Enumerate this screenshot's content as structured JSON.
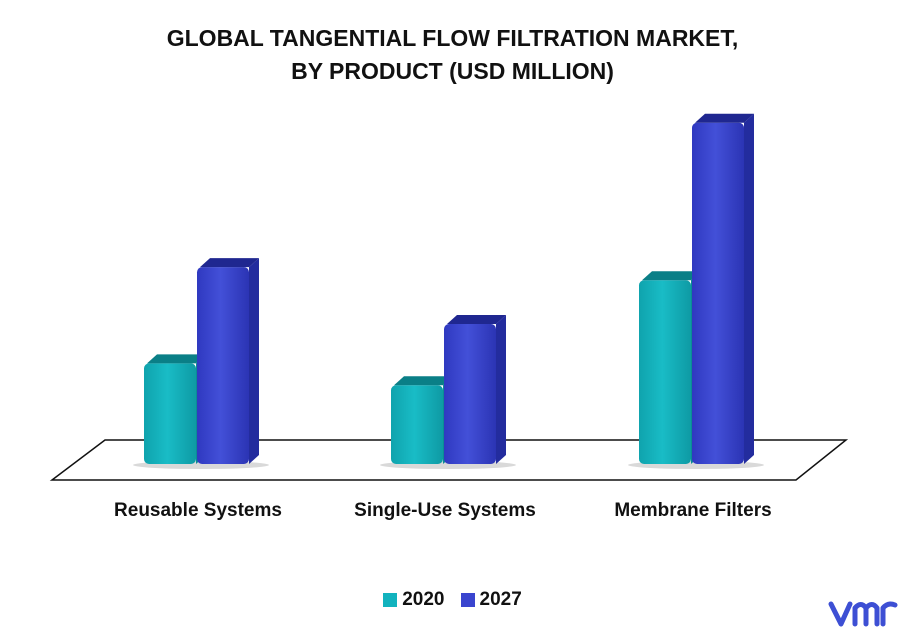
{
  "chart_data": {
    "type": "bar",
    "title_line1": "GLOBAL TANGENTIAL FLOW FILTRATION MARKET,",
    "title_line2": "BY PRODUCT (USD MILLION)",
    "categories": [
      "Reusable Systems",
      "Single-Use Systems",
      "Membrane Filters"
    ],
    "series": [
      {
        "name": "2020",
        "color": "#12b3be",
        "values": [
          23,
          18,
          42
        ]
      },
      {
        "name": "2027",
        "color": "#3a45cf",
        "values": [
          45,
          32,
          78
        ]
      }
    ],
    "ylim": [
      0,
      80
    ],
    "grid": false,
    "legend_position": "bottom-center",
    "style": "3d-columns"
  },
  "branding": {
    "logo_icon": "vmr-logo-icon",
    "color": "#3d4fd4"
  }
}
